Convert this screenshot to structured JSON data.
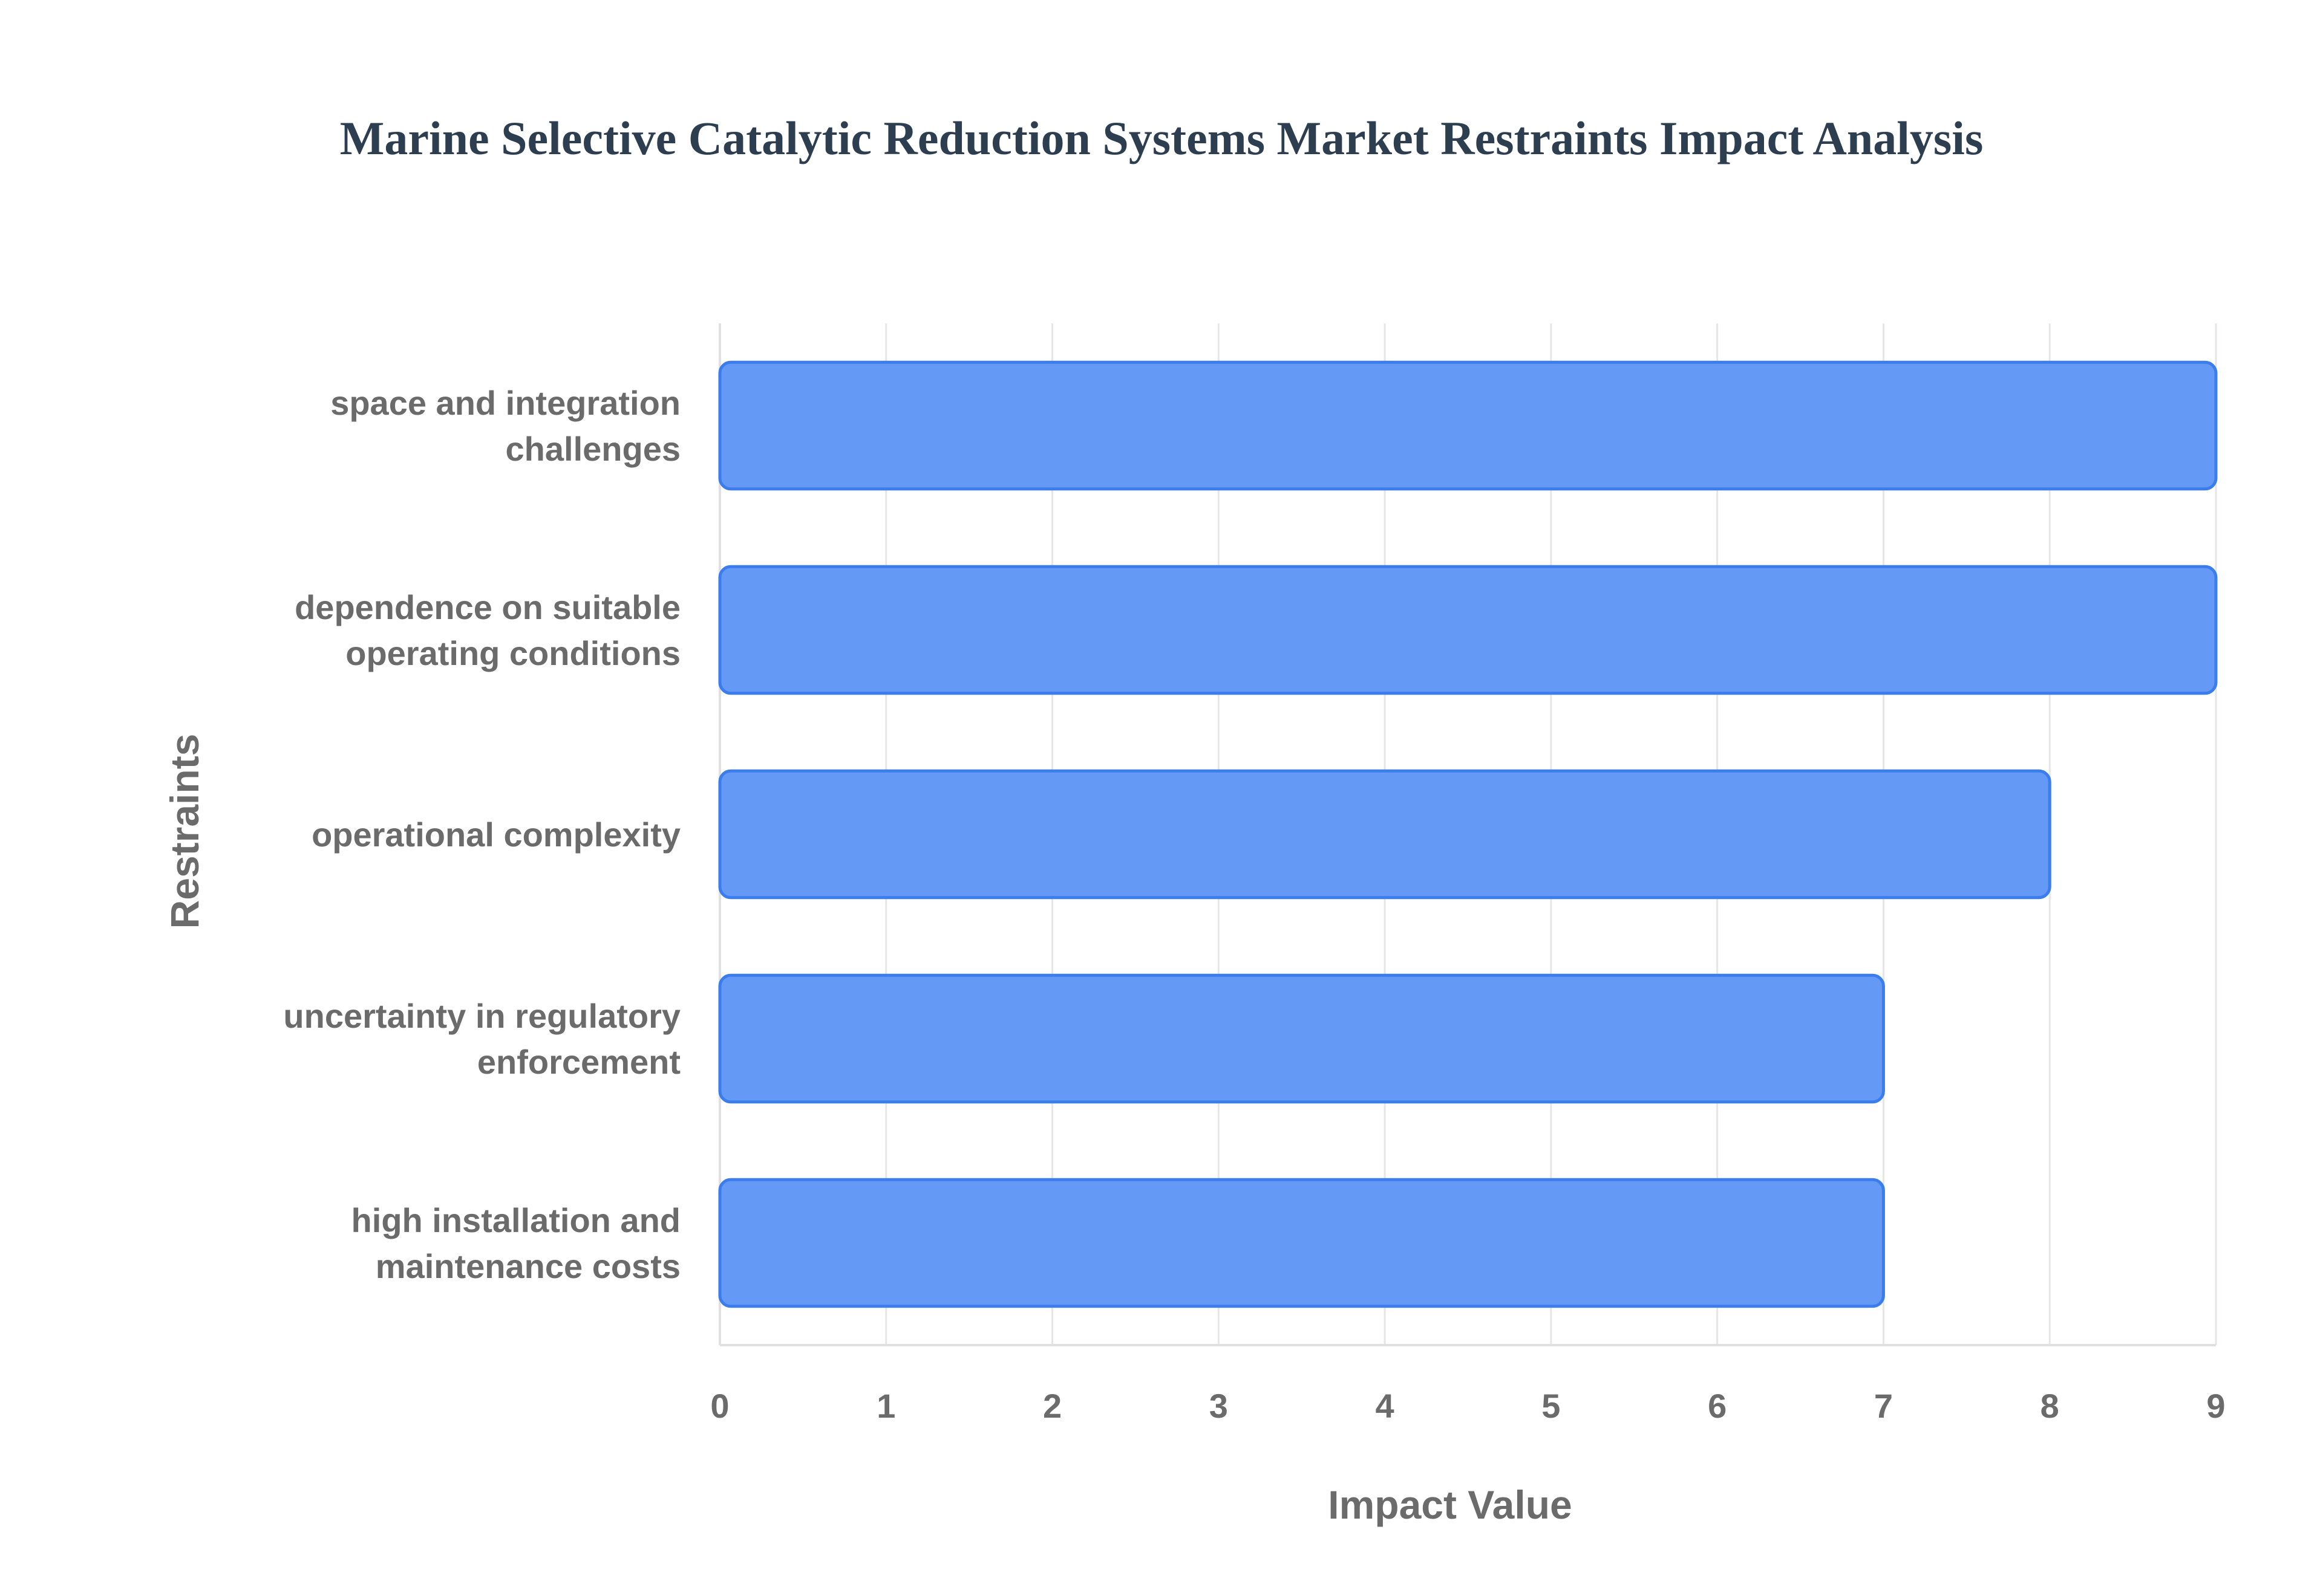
{
  "chart_data": {
    "type": "bar",
    "orientation": "horizontal",
    "title": "Marine Selective Catalytic Reduction Systems Market Restraints Impact Analysis",
    "xlabel": "Impact Value",
    "ylabel": "Restraints",
    "xlim": [
      0,
      9
    ],
    "x_ticks": [
      "0",
      "1",
      "2",
      "3",
      "4",
      "5",
      "6",
      "7",
      "8",
      "9"
    ],
    "categories": [
      [
        "space and integration",
        "challenges"
      ],
      [
        "dependence on suitable",
        "operating conditions"
      ],
      [
        "operational complexity"
      ],
      [
        "uncertainty in regulatory",
        "enforcement"
      ],
      [
        "high installation and",
        "maintenance costs"
      ]
    ],
    "values": [
      9,
      9,
      8,
      7,
      7
    ],
    "grid": true,
    "legend": "none",
    "colors": {
      "bar_fill": "#6499f6",
      "bar_stroke": "#3b7ded",
      "title": "#2c3e50",
      "text": "#6b6b6b"
    }
  }
}
